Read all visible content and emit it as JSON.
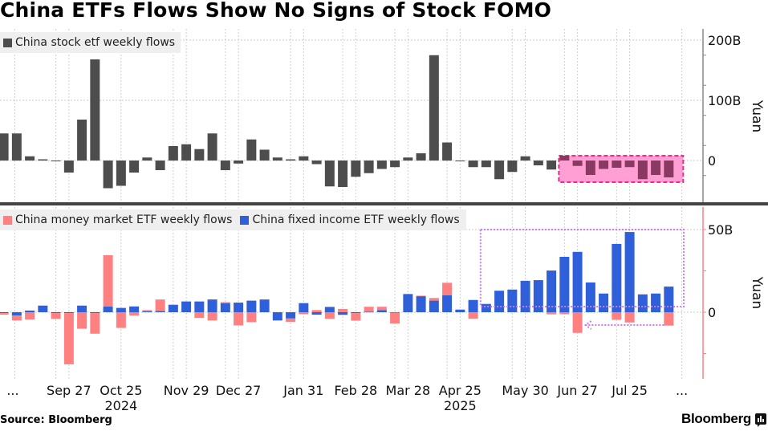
{
  "title": "China ETFs Flows Show No Signs of Stock FOMO",
  "source": "Source: Bloomberg",
  "brand": "Bloomberg",
  "colors": {
    "stock": "#4d4d4d",
    "stock_highlight": "#8a3a62",
    "money_market": "#ff8080",
    "fixed_income": "#2f5fd9",
    "highlight_box_fill": "#ff9fd4",
    "highlight_box_stroke": "#ee2b8a",
    "annotation_purple": "#c77cf2",
    "bottom_axis": "#ff8080",
    "top_axis": "#888888"
  },
  "chart_data": [
    {
      "type": "bar",
      "title": "China stock etf weekly flows",
      "legend": [
        {
          "name": "China stock etf weekly flows",
          "color": "#4d4d4d"
        }
      ],
      "legend_position": "top-left",
      "ylabel": "Yuan",
      "ylim": [
        -40,
        200
      ],
      "yticks": [
        0,
        100,
        200
      ],
      "ytick_labels": [
        "0",
        "100B",
        "200B"
      ],
      "grid": true,
      "highlight_range": {
        "start_index": 43,
        "end_index": 51,
        "note": "pink dashed highlight box over recent weeks"
      },
      "series": [
        {
          "name": "China stock etf weekly flows",
          "values": [
            45,
            45,
            7,
            2,
            -1,
            -20,
            68,
            168,
            -46,
            -42,
            -20,
            5,
            -16,
            24,
            27,
            19,
            45,
            -16,
            -5,
            35,
            18,
            5,
            2,
            7,
            -6,
            -43,
            -44,
            -27,
            -21,
            -14,
            -11,
            5,
            12,
            175,
            30,
            -1,
            -11,
            -11,
            -31,
            -19,
            7,
            -8,
            -15,
            8,
            -9,
            -24,
            -14,
            -12,
            -11,
            -31,
            -24,
            -28
          ]
        }
      ]
    },
    {
      "type": "bar",
      "stacked": true,
      "title": "China money market / fixed income ETF weekly flows",
      "legend": [
        {
          "name": "China money market ETF weekly flows",
          "color": "#ff8080"
        },
        {
          "name": "China fixed income ETF weekly flows",
          "color": "#2f5fd9"
        }
      ],
      "legend_position": "top-left",
      "ylabel": "Yuan",
      "ylim": [
        -40,
        55
      ],
      "yticks": [
        0,
        50
      ],
      "ytick_labels": [
        "0",
        "50B"
      ],
      "grid": true,
      "annotations": [
        {
          "type": "dotted-box",
          "start_index": 37,
          "end_index": 51,
          "note": "purple dotted box around rising fixed income inflows"
        },
        {
          "type": "dotted-arrow",
          "from_index": 51,
          "to_index": 44,
          "note": "purple dotted arrow pointing left"
        }
      ],
      "series": [
        {
          "name": "China money market ETF weekly flows",
          "values": [
            -1,
            -3,
            -4.5,
            0,
            -3.5,
            -31,
            -10,
            -12.5,
            31,
            -9.5,
            -2,
            0.8,
            7,
            0,
            0,
            -3.5,
            -5,
            0.6,
            -8,
            -6,
            0,
            0,
            -2,
            -1.2,
            1.3,
            -4,
            2,
            -4.5,
            3,
            2,
            -6.5,
            0,
            0.3,
            1.6,
            7.6,
            0,
            -3.9,
            0,
            0,
            0,
            0,
            0,
            -1.3,
            -1.2,
            -12.5,
            0,
            0,
            -4.6,
            -6.2,
            0,
            0,
            -8.1
          ]
        },
        {
          "name": "China fixed income ETF weekly flows",
          "values": [
            -0.5,
            -2,
            1,
            4,
            -0.5,
            -0.5,
            4,
            -0.5,
            3.5,
            2.6,
            3.5,
            0.5,
            0.7,
            4.5,
            6.5,
            6.5,
            7.7,
            5.5,
            5.8,
            7,
            7.7,
            -5,
            -3.8,
            5.5,
            -1.5,
            3.2,
            -1.6,
            -0.6,
            0.3,
            1.3,
            -0.3,
            11,
            9.7,
            7,
            10.2,
            1.6,
            7.4,
            5,
            13,
            13.7,
            19,
            19.4,
            25.2,
            33.5,
            36.5,
            18,
            11.3,
            41.3,
            48.5,
            10.8,
            11.3,
            15.5
          ]
        }
      ]
    }
  ],
  "x_axis": {
    "ticks": [
      {
        "label": "...",
        "index": 0.7
      },
      {
        "label": "Sep 27",
        "index": 5
      },
      {
        "label": "Oct 25",
        "index": 9
      },
      {
        "label": "Nov 29",
        "index": 14
      },
      {
        "label": "Dec 27",
        "index": 18
      },
      {
        "label": "Jan 31",
        "index": 23
      },
      {
        "label": "Feb 28",
        "index": 27
      },
      {
        "label": "Mar 28",
        "index": 31
      },
      {
        "label": "Apr 25",
        "index": 35
      },
      {
        "label": "May 30",
        "index": 40
      },
      {
        "label": "Jun 27",
        "index": 44
      },
      {
        "label": "Jul 25",
        "index": 48
      },
      {
        "label": "...",
        "index": 52
      }
    ],
    "year_labels": [
      {
        "label": "2024",
        "index": 9
      },
      {
        "label": "2025",
        "index": 35
      }
    ],
    "grid_indices": [
      0.85,
      4,
      5,
      9,
      13,
      14,
      17,
      18,
      22,
      23,
      26,
      27,
      30,
      31,
      34,
      35,
      39,
      40,
      43,
      44,
      47,
      48,
      52
    ]
  }
}
